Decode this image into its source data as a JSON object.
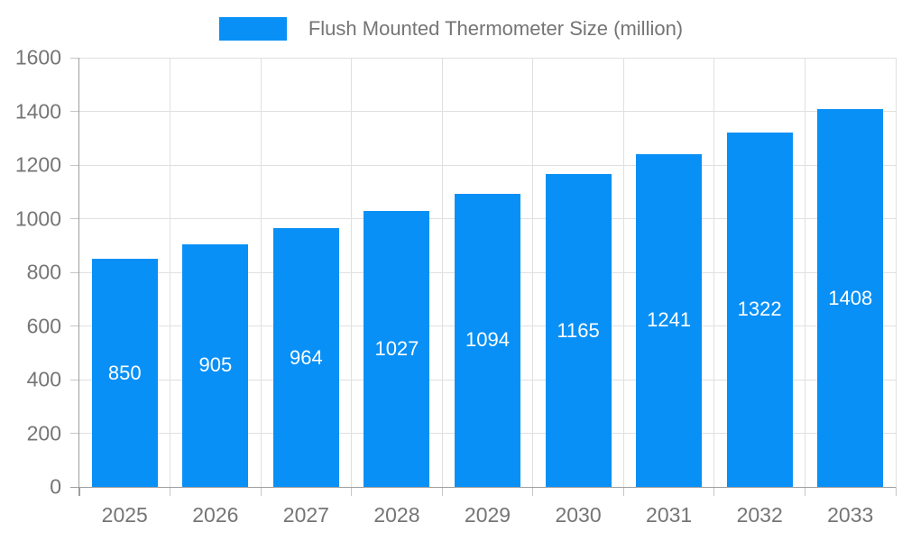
{
  "chart_data": {
    "type": "bar",
    "title": "Flush Mounted Thermometer Size (million)",
    "legend_position": "top",
    "categories": [
      "2025",
      "2026",
      "2027",
      "2028",
      "2029",
      "2030",
      "2031",
      "2032",
      "2033"
    ],
    "values": [
      850,
      905,
      964,
      1027,
      1094,
      1165,
      1241,
      1322,
      1408
    ],
    "y_tick_labels": [
      "0",
      "200",
      "400",
      "600",
      "800",
      "1000",
      "1200",
      "1400",
      "1600"
    ],
    "ylim": [
      0,
      1600
    ],
    "ytick_step": 200,
    "xlabel": "",
    "ylabel": "",
    "grid": true,
    "colors": {
      "bar": "#0890f6",
      "grid": "#e0e0e0",
      "axis": "#9e9e9e",
      "tick": "#c6c6c6",
      "axis_label": "#757575",
      "value_label": "#ffffff",
      "background": "#ffffff"
    }
  }
}
